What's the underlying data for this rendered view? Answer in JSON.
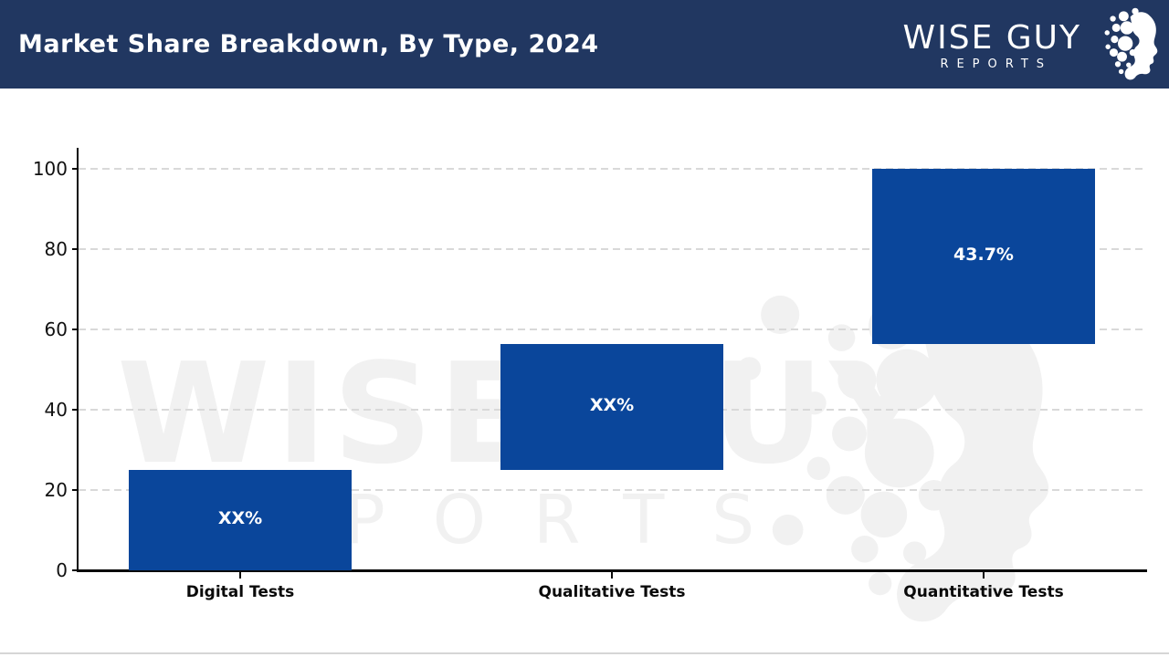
{
  "header": {
    "background": "#213761",
    "title": "Market Share Breakdown, By Type, 2024",
    "logo": {
      "wordmark": "WISE GUY",
      "subtext": "REPORTS",
      "face_icon": "dotted-head-profile"
    }
  },
  "watermark": {
    "line1": "WISE GUY",
    "line2": "REPORTS",
    "color": "#f1f1f1"
  },
  "chart_data": {
    "type": "bar",
    "subtype": "floating-segment-breakdown",
    "title": "Market Share Breakdown, By Type, 2024",
    "categories": [
      "Digital Tests",
      "Qualitative Tests",
      "Quantitative Tests"
    ],
    "series": [
      {
        "name": "Market Share (%)",
        "ranges": [
          [
            0,
            25
          ],
          [
            25,
            56.3
          ],
          [
            56.3,
            100
          ]
        ],
        "segment_sizes": [
          25,
          31.3,
          43.7
        ],
        "labels": [
          "XX%",
          "XX%",
          "43.7%"
        ]
      }
    ],
    "ylim": [
      0,
      100
    ],
    "yticks": [
      0,
      20,
      40,
      60,
      80,
      100
    ],
    "xlabel": "",
    "ylabel": "",
    "grid": "horizontal-dashed",
    "legend": "none",
    "bar_color": "#0A469B",
    "bar_label_color": "#ffffff",
    "axis_color": "#0a0a0a",
    "gridline_color": "#d9d9d9"
  }
}
